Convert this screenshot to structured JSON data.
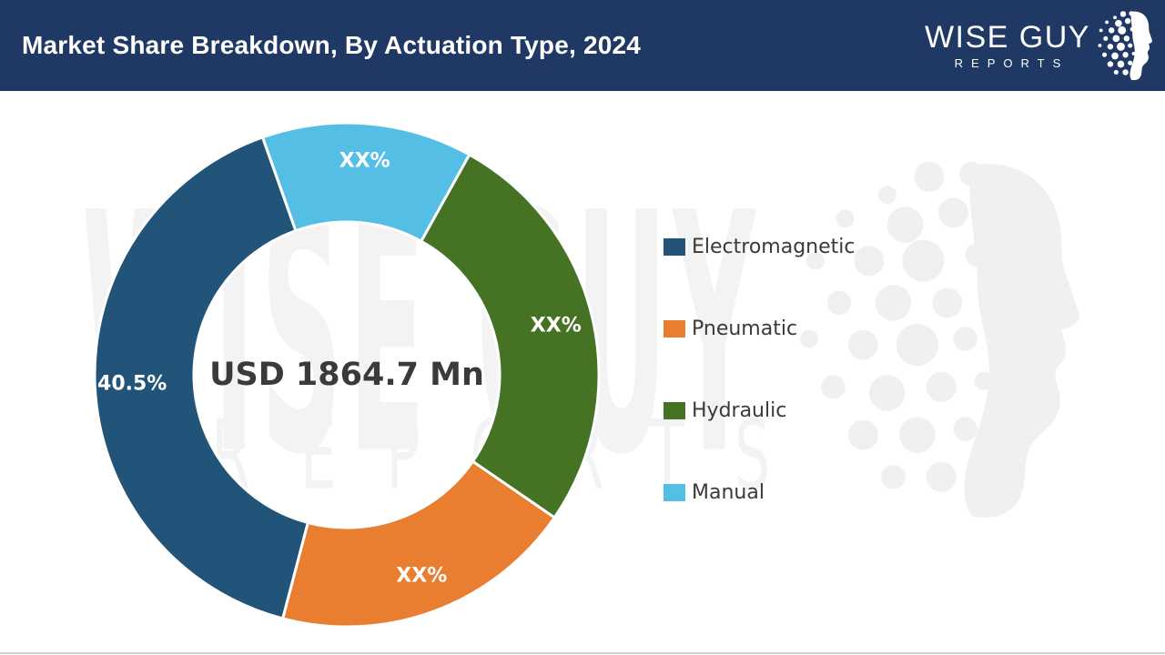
{
  "header": {
    "title": "Market Share Breakdown, By Actuation Type, 2024",
    "logo": {
      "line1": "WISE GUY",
      "line2": "REPORTS"
    }
  },
  "chart_data": {
    "type": "pie",
    "subtype": "donut",
    "title": "Market Share Breakdown, By Actuation Type, 2024",
    "center_label": "USD 1864.7 Mn",
    "legend_position": "right",
    "start_angle_deg": 109.5,
    "direction": "counterclockwise",
    "slices": [
      {
        "name": "Electromagnetic",
        "label": "40.5%",
        "value": 40.5,
        "color": "#225379"
      },
      {
        "name": "Pneumatic",
        "label": "XX%",
        "value": 19.5,
        "color": "#E97E30"
      },
      {
        "name": "Hydraulic",
        "label": "XX%",
        "value": 26.5,
        "color": "#457323"
      },
      {
        "name": "Manual",
        "label": "XX%",
        "value": 13.5,
        "color": "#54BEE4"
      }
    ]
  },
  "watermark": {
    "line1": "WISE GUY",
    "line2": "REPORTS"
  }
}
